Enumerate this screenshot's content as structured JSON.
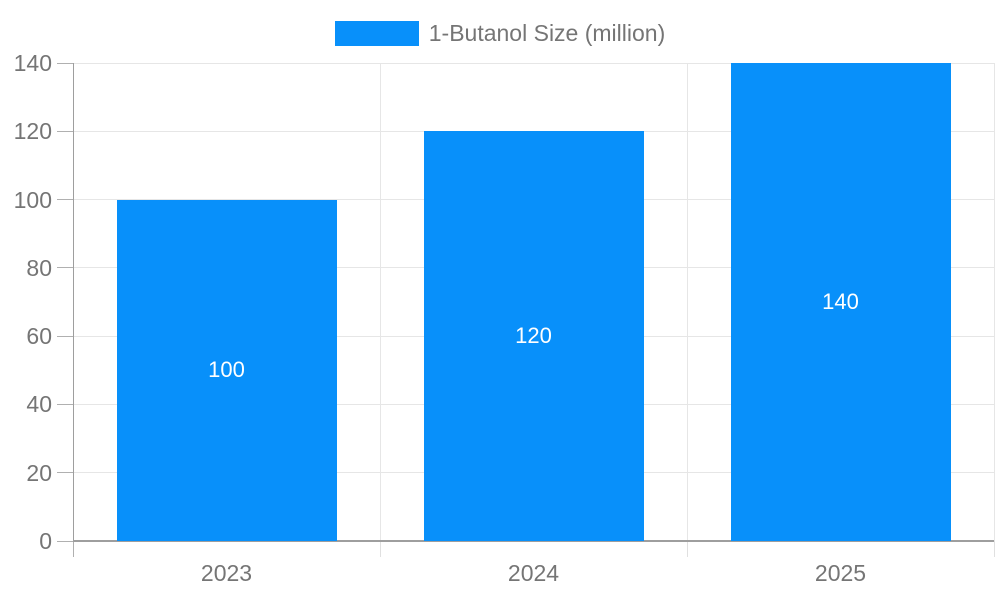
{
  "legend": {
    "label": "1-Butanol Size (million)"
  },
  "chart_data": {
    "type": "bar",
    "title": "",
    "categories": [
      "2023",
      "2024",
      "2025"
    ],
    "series": [
      {
        "name": "1-Butanol Size (million)",
        "values": [
          100,
          120,
          140
        ]
      }
    ],
    "data_labels": [
      "100",
      "120",
      "140"
    ],
    "xlabel": "",
    "ylabel": "",
    "ylim": [
      0,
      140
    ],
    "ytick_interval": 20,
    "yticks": [
      0,
      20,
      40,
      60,
      80,
      100,
      120,
      140
    ],
    "grid": true,
    "legend_position": "top-center",
    "colors": {
      "bar": "#0890fa",
      "bar_label": "#ffffff",
      "axis_text": "#757575",
      "grid_line": "#e6e6e6",
      "tick_line": "#b0b0b0",
      "axis_line": "#9e9e9e"
    }
  }
}
